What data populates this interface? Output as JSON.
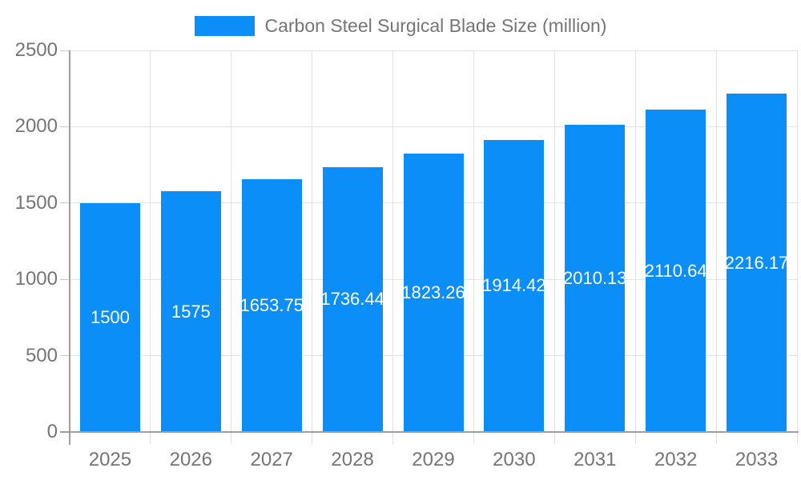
{
  "chart_data": {
    "type": "bar",
    "title": "Carbon Steel Surgical Blade Size (million)",
    "legend_entries": [
      "Carbon Steel Surgical Blade Size (million)"
    ],
    "legend_position": "top-center",
    "categories": [
      "2025",
      "2026",
      "2027",
      "2028",
      "2029",
      "2030",
      "2031",
      "2032",
      "2033"
    ],
    "values": [
      1500,
      1575,
      1653.75,
      1736.44,
      1823.26,
      1914.42,
      2010.13,
      2110.64,
      2216.17
    ],
    "value_labels": [
      "1500",
      "1575",
      "1653.75",
      "1736.44",
      "1823.26",
      "1914.42",
      "2010.13",
      "2110.64",
      "2216.17"
    ],
    "xlabel": "",
    "ylabel": "",
    "ylim": [
      0,
      2500
    ],
    "yticks": [
      0,
      500,
      1000,
      1500,
      2000,
      2500
    ],
    "grid": true,
    "colors": {
      "bar": "#0c8ef8",
      "bar_label": "#ffffff",
      "axis_text": "#757575",
      "gridline": "#e2e2e2",
      "tick": "#c9c9c9",
      "axis_line": "#9e9e9e",
      "background": "#ffffff"
    }
  }
}
